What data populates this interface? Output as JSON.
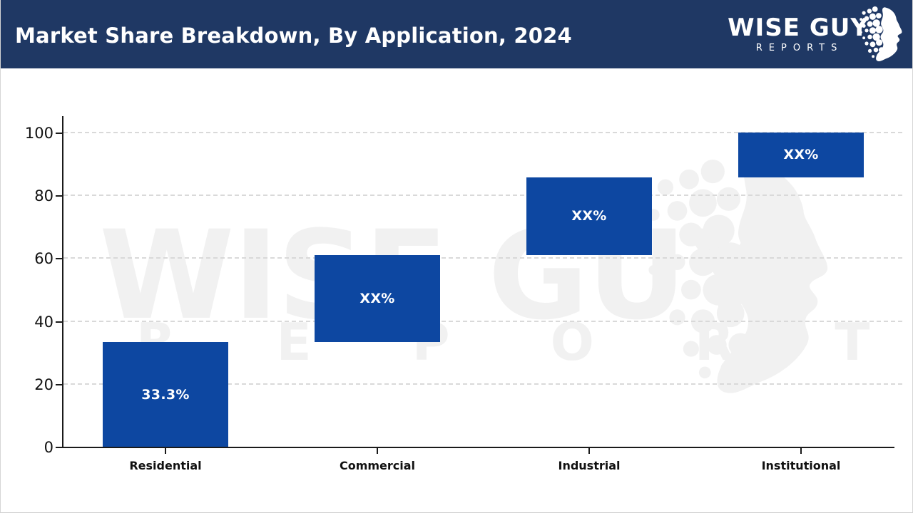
{
  "header": {
    "title": "Market Share Breakdown, By Application, 2024",
    "brand": {
      "name": "WISE GUY",
      "subtitle": "REPORTS"
    },
    "bg_color": "#1f3864",
    "text_color": "#ffffff"
  },
  "watermark": {
    "line1": "WISE GUY",
    "line2": "R E P O R T S",
    "color": "#f1f1f1"
  },
  "chart_data": {
    "type": "bar",
    "subtype": "waterfall-floating-bars",
    "title": "Market Share Breakdown, By Application, 2024",
    "categories": [
      "Residential",
      "Commercial",
      "Industrial",
      "Institutional"
    ],
    "segments": [
      {
        "category": "Residential",
        "start": 0,
        "end": 33.3,
        "label": "33.3%"
      },
      {
        "category": "Commercial",
        "start": 33.3,
        "end": 61.1,
        "label": "XX%"
      },
      {
        "category": "Industrial",
        "start": 61.1,
        "end": 85.8,
        "label": "XX%"
      },
      {
        "category": "Institutional",
        "start": 85.8,
        "end": 100,
        "label": "XX%"
      }
    ],
    "yticks": [
      0,
      20,
      40,
      60,
      80,
      100
    ],
    "ylim": [
      0,
      105
    ],
    "xlabel": "",
    "ylabel": "",
    "bar_color": "#0d47a1",
    "bar_label_color": "#ffffff",
    "grid": "horizontal-dashed",
    "grid_color": "#d9d9d9",
    "axis_color": "#1a1a1a",
    "legend": "none"
  }
}
